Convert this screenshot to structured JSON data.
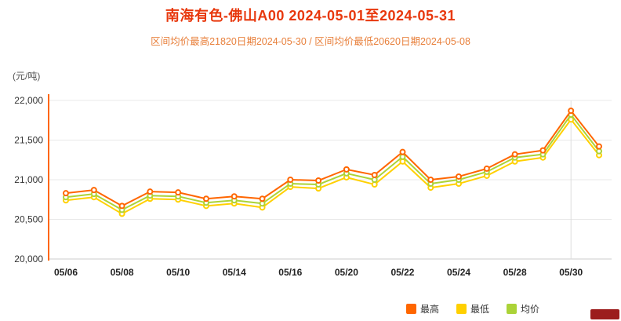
{
  "header": {
    "title": "南海有色-佛山A00 2024-05-01至2024-05-31",
    "subtitle": "区间均价最高21820日期2024-05-30 / 区间均价最低20620日期2024-05-08"
  },
  "axis": {
    "unit_label": "(元/吨)"
  },
  "legend": {
    "items": [
      {
        "label": "最高",
        "color": "#ff6600"
      },
      {
        "label": "最低",
        "color": "#ffd000"
      },
      {
        "label": "均价",
        "color": "#abd338"
      }
    ]
  },
  "colors": {
    "title": "#e8380d",
    "subtitle": "#e87f3a",
    "y_axis_line": "#ff6600",
    "grid": "#e9e9e9",
    "axis_text": "#333333",
    "footer_badge": "#9c1d1d"
  },
  "chart_data": {
    "type": "line",
    "title": "南海有色-佛山A00 2024-05-01至2024-05-31",
    "x": [
      "05/06",
      "05/07",
      "05/08",
      "05/09",
      "05/10",
      "05/11",
      "05/14",
      "05/15",
      "05/16",
      "05/17",
      "05/20",
      "05/21",
      "05/22",
      "05/23",
      "05/24",
      "05/27",
      "05/28",
      "05/29",
      "05/30",
      "05/31"
    ],
    "x_tick_labels": [
      "05/06",
      "05/08",
      "05/10",
      "05/14",
      "05/16",
      "05/20",
      "05/22",
      "05/24",
      "05/28",
      "05/30"
    ],
    "series": [
      {
        "name": "最高",
        "color": "#ff6600",
        "values": [
          20830,
          20870,
          20670,
          20850,
          20840,
          20760,
          20790,
          20760,
          21000,
          20990,
          21130,
          21060,
          21350,
          21000,
          21040,
          21140,
          21320,
          21370,
          21870,
          21420
        ]
      },
      {
        "name": "最低",
        "color": "#ffd000",
        "values": [
          20740,
          20780,
          20570,
          20760,
          20750,
          20670,
          20700,
          20650,
          20910,
          20890,
          21030,
          20940,
          21230,
          20900,
          20950,
          21050,
          21230,
          21280,
          21760,
          21310
        ]
      },
      {
        "name": "均价",
        "color": "#abd338",
        "values": [
          20780,
          20820,
          20620,
          20800,
          20790,
          20710,
          20740,
          20700,
          20950,
          20940,
          21080,
          21000,
          21290,
          20950,
          21000,
          21100,
          21280,
          21320,
          21820,
          21360
        ]
      }
    ],
    "ylabel": "元/吨",
    "ylim": [
      20000,
      22000
    ],
    "y_ticks": [
      20000,
      20500,
      21000,
      21500,
      22000
    ],
    "grid": true,
    "legend_position": "bottom-right",
    "highlight_x": "05/30"
  }
}
